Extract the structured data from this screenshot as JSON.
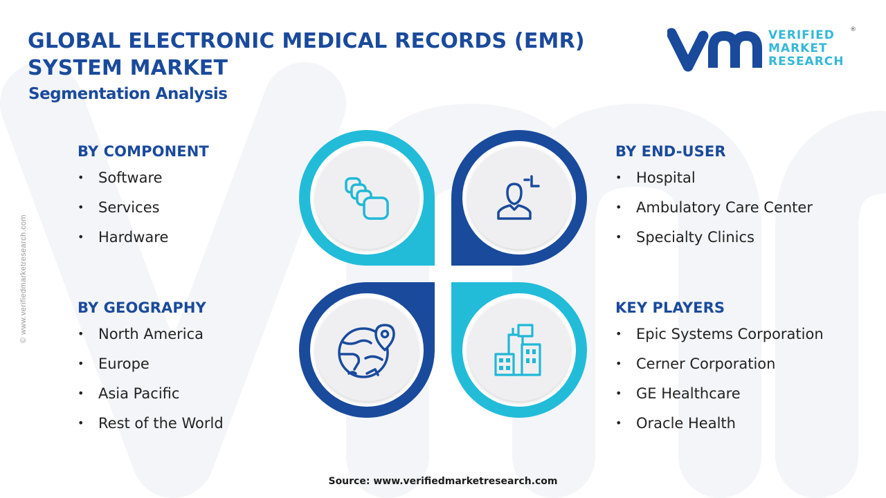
{
  "header": {
    "title": "GLOBAL ELECTRONIC MEDICAL RECORDS (EMR) SYSTEM MARKET",
    "subtitle": "Segmentation Analysis"
  },
  "brand": {
    "line1": "VERIFIED",
    "line2": "MARKET",
    "line3": "RESEARCH",
    "registered": "®",
    "primary_color": "#1a4a9c",
    "accent_color": "#34b8d8"
  },
  "side_text": "© www.verifiedmarketresearch.com",
  "segments": {
    "component": {
      "heading": "BY COMPONENT",
      "icon": "cascading-cards-icon",
      "items": [
        "Software",
        "Services",
        "Hardware"
      ]
    },
    "end_user": {
      "heading": "BY END-USER",
      "icon": "user-scan-icon",
      "items": [
        "Hospital",
        "Ambulatory Care Center",
        "Specialty Clinics"
      ]
    },
    "geography": {
      "heading": "BY GEOGRAPHY",
      "icon": "globe-location-icon",
      "items": [
        "North America",
        "Europe",
        "Asia Pacific",
        "Rest of the World"
      ]
    },
    "key_players": {
      "heading": "KEY PLAYERS",
      "icon": "city-buildings-icon",
      "items": [
        "Epic Systems Corporation",
        "Cerner Corporation",
        "GE Healthcare",
        "Oracle Health"
      ]
    }
  },
  "footer": {
    "source": "Source: www.verifiedmarketresearch.com"
  }
}
